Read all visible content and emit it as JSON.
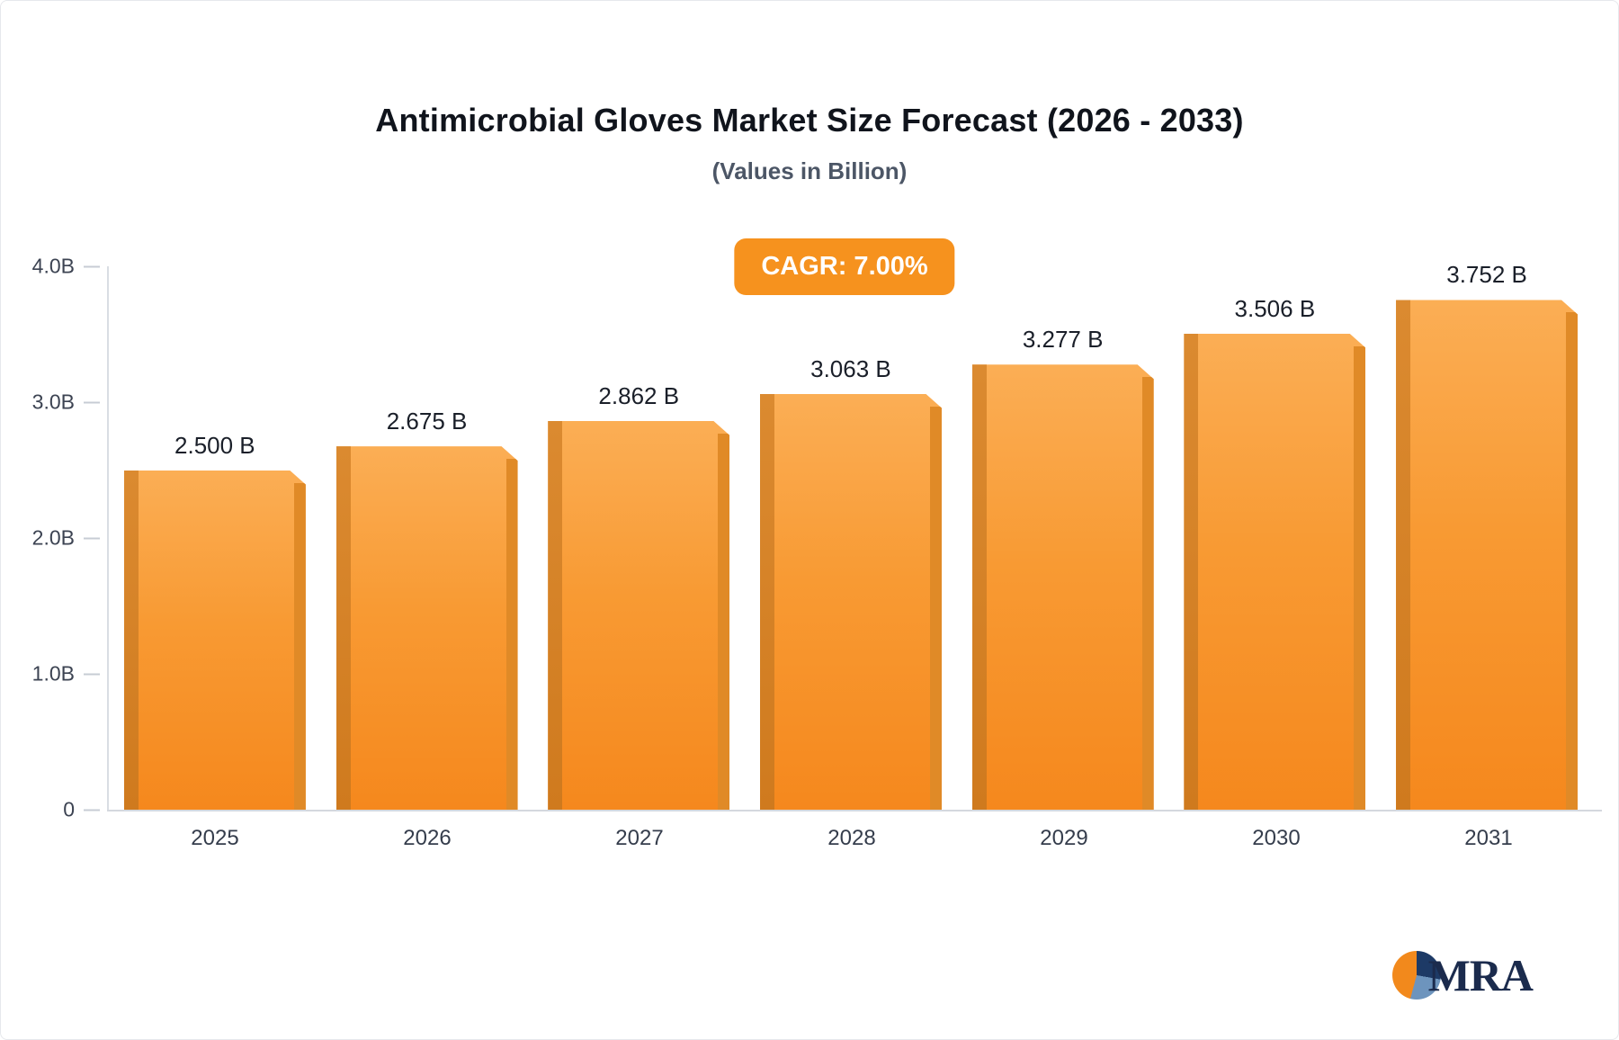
{
  "header": {
    "title": "Antimicrobial Gloves Market Size Forecast (2026 - 2033)",
    "subtitle": "(Values in Billion)"
  },
  "badge": {
    "label": "CAGR: 7.00%"
  },
  "logo": {
    "text": "MRA"
  },
  "chart_data": {
    "type": "bar",
    "title": "Antimicrobial Gloves Market Size Forecast (2026 - 2033)",
    "subtitle": "(Values in Billion)",
    "categories": [
      "2025",
      "2026",
      "2027",
      "2028",
      "2029",
      "2030",
      "2031"
    ],
    "values": [
      2.5,
      2.675,
      2.862,
      3.063,
      3.277,
      3.506,
      3.752
    ],
    "bar_labels": [
      "2.500 B",
      "2.675 B",
      "2.862 B",
      "3.063 B",
      "3.277 B",
      "3.506 B",
      "3.752 B"
    ],
    "xlabel": "",
    "ylabel": "",
    "ylim": [
      0,
      4.0
    ],
    "yticks": [
      "4.0B",
      "3.0B",
      "2.0B",
      "1.0B",
      "0"
    ],
    "ytick_values": [
      4,
      3,
      2,
      1,
      0
    ],
    "grid": false,
    "legend": "none",
    "cagr": "CAGR: 7.00%",
    "colors": {
      "bar_face_top": "#FBAE55",
      "bar_face_bottom": "#F5881D",
      "bar_side": "#CF7A1E",
      "badge_bg": "#F6921E",
      "axis_text": "#3C4352",
      "title_text": "#10141C"
    }
  }
}
